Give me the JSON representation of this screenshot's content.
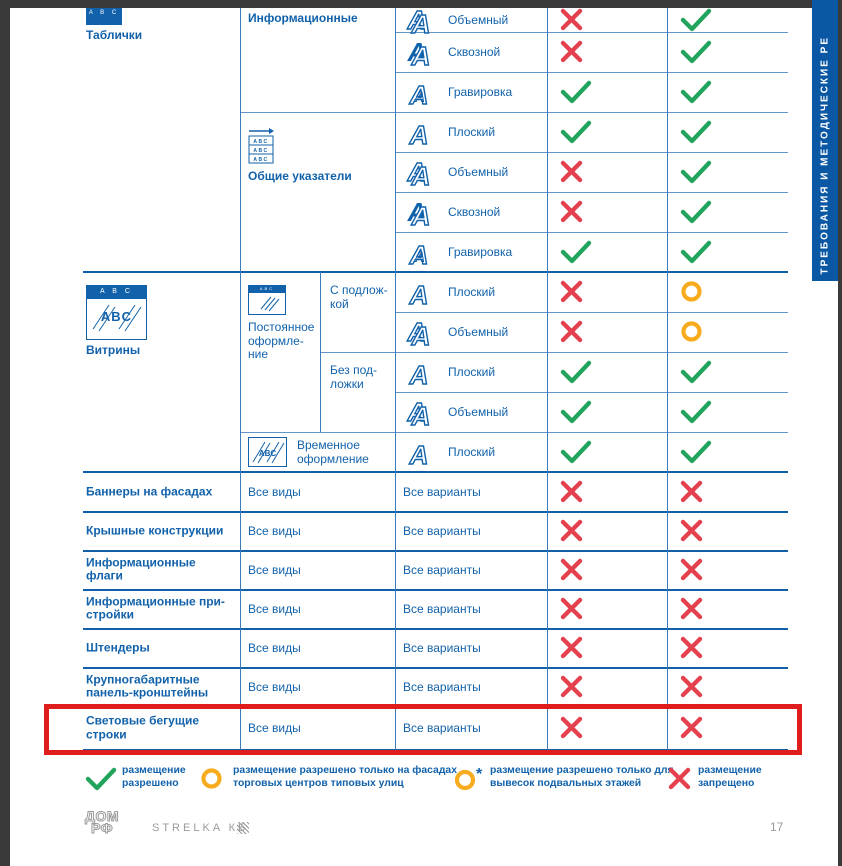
{
  "sidebar": {
    "text": "ТРЕБОВАНИЯ И МЕТОДИЧЕСКИЕ РЕ"
  },
  "colors": {
    "accent_blue": "#1262ab",
    "sidebar_blue": "#0a57a3",
    "allowed_green": "#23a45c",
    "forbidden_red": "#e5404e",
    "conditional_yellow": "#f6ac1e",
    "highlight_red": "#e01d1d"
  },
  "table": {
    "section_tablichki": {
      "category": "Таблички",
      "subcat_info": {
        "label": "Информационные"
      },
      "subcat_pointers": {
        "label": "Общие указатели"
      },
      "rows_info": [
        {
          "type": "Объемный",
          "a": "volume",
          "s1": "cross",
          "s2": "check"
        },
        {
          "type": "Сквозной",
          "a": "through",
          "s1": "cross",
          "s2": "check"
        },
        {
          "type": "Гравировка",
          "a": "engraved",
          "s1": "check",
          "s2": "check"
        }
      ],
      "rows_pointers": [
        {
          "type": "Плоский",
          "a": "flat",
          "s1": "check",
          "s2": "check"
        },
        {
          "type": "Объемный",
          "a": "volume",
          "s1": "cross",
          "s2": "check"
        },
        {
          "type": "Сквозной",
          "a": "through",
          "s1": "cross",
          "s2": "check"
        },
        {
          "type": "Гравировка",
          "a": "engraved",
          "s1": "check",
          "s2": "check"
        }
      ]
    },
    "section_vitriny": {
      "category": "Витрины",
      "subcat_permanent": {
        "label": "Постоянное оформле-ние"
      },
      "subcat_temporary": {
        "label": "Временное оформление"
      },
      "subsub_with_backing": "С подлож-кой",
      "subsub_without_backing": "Без под-ложки",
      "rows_with_backing": [
        {
          "type": "Плоский",
          "a": "flat",
          "s1": "cross",
          "s2": "ring"
        },
        {
          "type": "Объемный",
          "a": "volume",
          "s1": "cross",
          "s2": "ring"
        }
      ],
      "rows_without_backing": [
        {
          "type": "Плоский",
          "a": "flat",
          "s1": "check",
          "s2": "check"
        },
        {
          "type": "Объемный",
          "a": "volume",
          "s1": "check",
          "s2": "check"
        }
      ],
      "rows_temporary": [
        {
          "type": "Плоский",
          "a": "flat",
          "s1": "check",
          "s2": "check"
        }
      ]
    },
    "bottom_rows": [
      {
        "category": "Баннеры на фасадах",
        "kinds": "Все виды",
        "variants": "Все варианты",
        "s1": "cross",
        "s2": "cross",
        "highlighted": false
      },
      {
        "category": "Крышные конструкции",
        "kinds": "Все виды",
        "variants": "Все варианты",
        "s1": "cross",
        "s2": "cross",
        "highlighted": false
      },
      {
        "category": "Информационные флаги",
        "kinds": "Все виды",
        "variants": "Все варианты",
        "s1": "cross",
        "s2": "cross",
        "highlighted": false
      },
      {
        "category": "Информационные при-стройки",
        "kinds": "Все виды",
        "variants": "Все варианты",
        "s1": "cross",
        "s2": "cross",
        "highlighted": false
      },
      {
        "category": "Штендеры",
        "kinds": "Все виды",
        "variants": "Все варианты",
        "s1": "cross",
        "s2": "cross",
        "highlighted": false
      },
      {
        "category": "Крупногабаритные панель-кронштейны",
        "kinds": "Все виды",
        "variants": "Все варианты",
        "s1": "cross",
        "s2": "cross",
        "highlighted": false
      },
      {
        "category": "Световые бегущие строки",
        "kinds": "Все виды",
        "variants": "Все варианты",
        "s1": "cross",
        "s2": "cross",
        "highlighted": true
      }
    ]
  },
  "legend": [
    {
      "icon": "check",
      "text": "размещение разрешено"
    },
    {
      "icon": "ring",
      "text": "размещение разрешено только на фасадах торговых центров типовых улиц"
    },
    {
      "icon": "ring-star",
      "text": "размещение разрешено только для вывесок подвальных этажей"
    },
    {
      "icon": "cross",
      "text": "размещение запрещено"
    }
  ],
  "footer": {
    "logo_top": "ДОМ",
    "logo_bottom": "РФ",
    "brand": "STRELKA КБ",
    "page_number": "17"
  }
}
